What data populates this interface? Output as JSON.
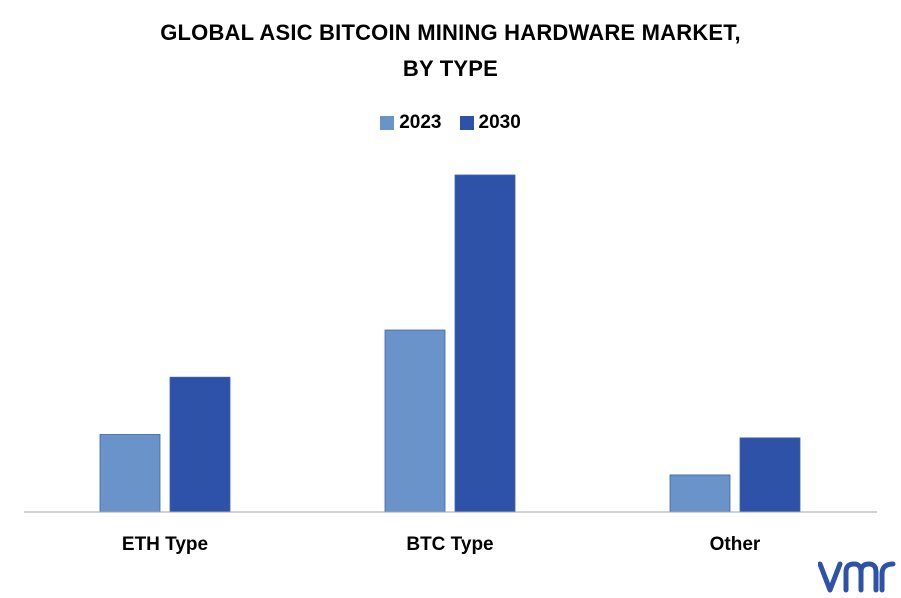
{
  "chart_data": {
    "type": "bar",
    "title_line1": "GLOBAL ASIC BITCOIN MINING HARDWARE MARKET,",
    "title_line2": "BY TYPE",
    "categories": [
      "ETH Type",
      "BTC Type",
      "Other"
    ],
    "series": [
      {
        "name": "2023",
        "values": [
          2.3,
          5.4,
          1.1
        ],
        "color": "#6a93c9"
      },
      {
        "name": "2030",
        "values": [
          4.0,
          10.0,
          2.2
        ],
        "color": "#2f52a9"
      }
    ],
    "ylim": [
      0,
      10
    ],
    "grid": false,
    "legend_position": "top-center"
  },
  "brand": {
    "logo_text": "vmr",
    "color": "#2f52a9"
  }
}
